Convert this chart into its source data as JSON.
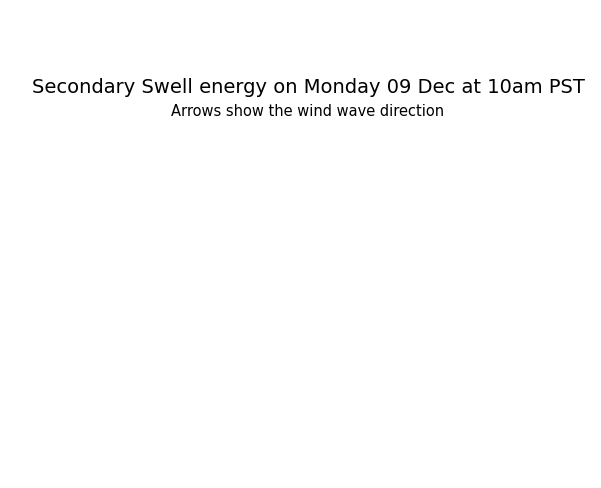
{
  "title": "Secondary Swell energy on Monday 09 Dec at 10am PST",
  "subtitle": "Arrows show the wind wave direction",
  "title_fontsize": 14,
  "subtitle_fontsize": 10.5,
  "extent": [
    -127.5,
    -102.0,
    22.0,
    50.5
  ],
  "background_color": "#ffffff",
  "ocean_color": "#ffffff",
  "land_color_light": "#c8c8c8",
  "land_color_dark": "#a0a0a0",
  "border_color": "#000000",
  "border_linewidth": 0.7,
  "fig_width": 6.01,
  "fig_height": 4.89,
  "dpi": 100
}
